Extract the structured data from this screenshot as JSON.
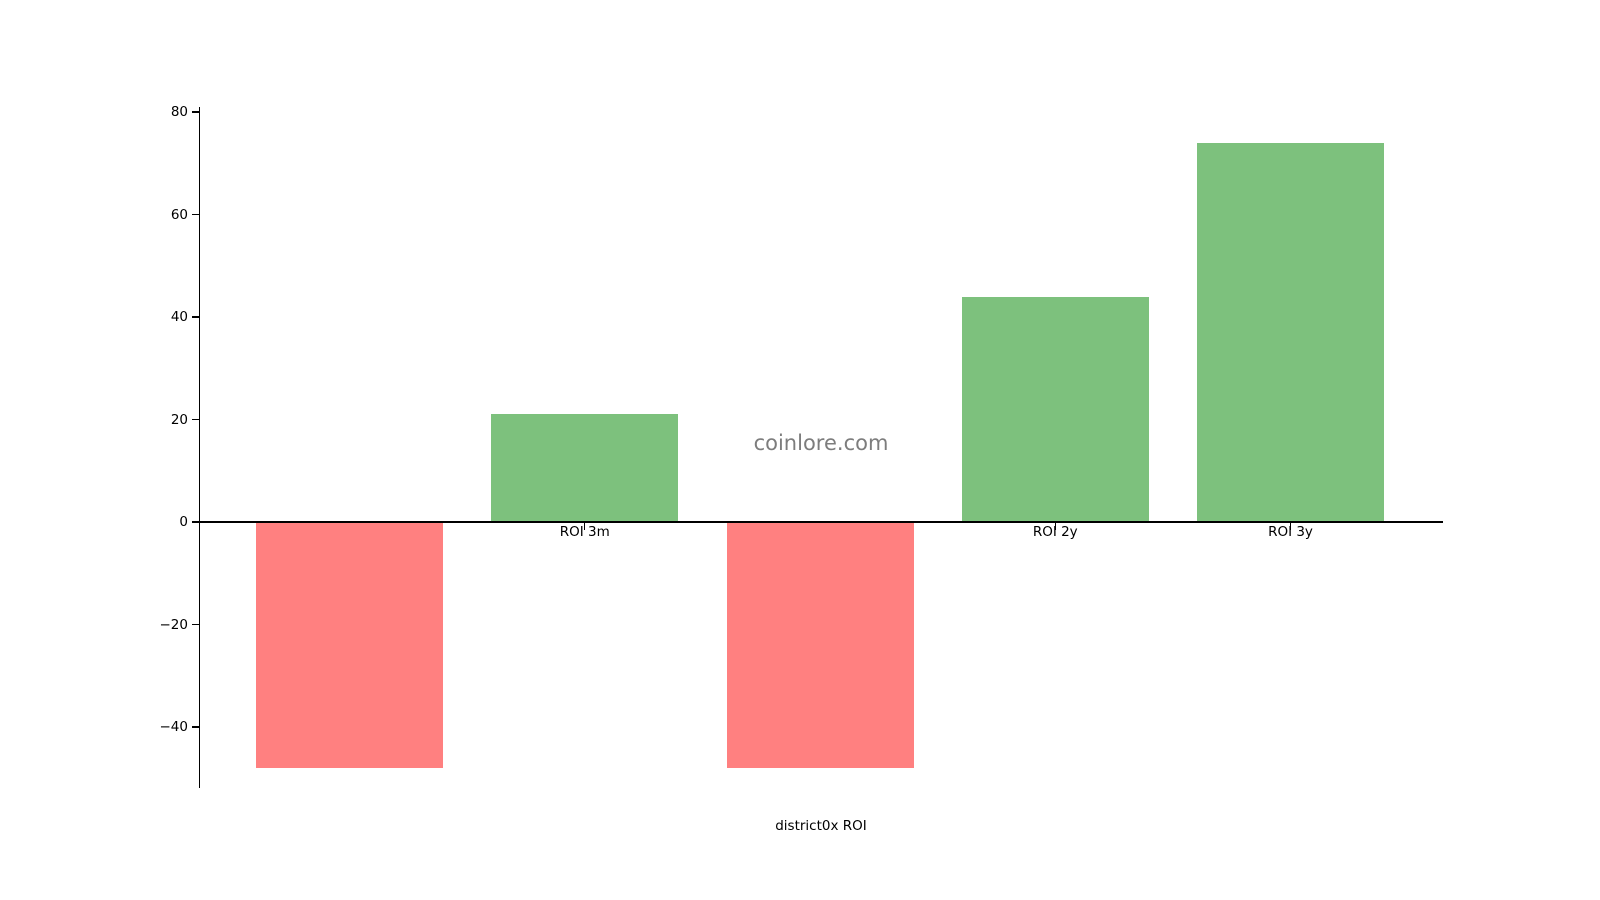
{
  "watermark": {
    "text": "coinlore.com",
    "color": "#7d7d7d"
  },
  "chart_data": {
    "type": "bar",
    "title": "district0x ROI",
    "categories": [
      "",
      "ROI 3m",
      "",
      "ROI 2y",
      "ROI 3y"
    ],
    "values": [
      -48,
      21,
      -48,
      44,
      74
    ],
    "positive_color": "#7dc17d",
    "negative_color": "#ff8080",
    "axis_color": "#000000",
    "text_color": "#000000",
    "y_tick_values": [
      80,
      60,
      40,
      20,
      0,
      -20,
      -40
    ],
    "y_tick_labels": [
      "80",
      "60",
      "40",
      "20",
      "0",
      "−20",
      "−40"
    ],
    "ylim": [
      -52,
      81
    ],
    "xlabel": "district0x ROI",
    "ylabel": "",
    "grid": false,
    "legend_position": "none"
  }
}
